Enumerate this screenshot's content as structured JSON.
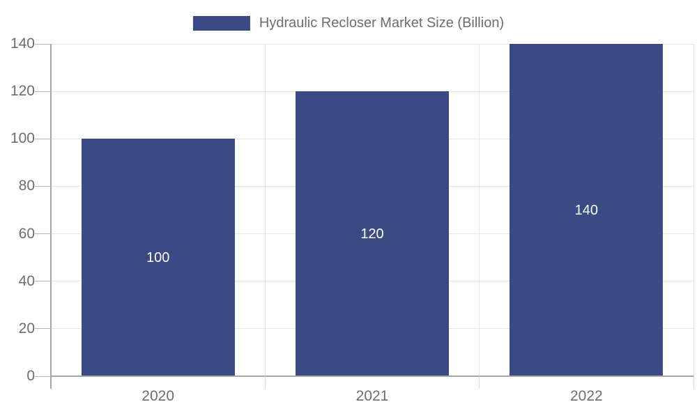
{
  "legend": {
    "label": "Hydraulic Recloser Market Size (Billion)",
    "swatch_color": "#3a4a85"
  },
  "chart_data": {
    "type": "bar",
    "title": "",
    "categories": [
      "2020",
      "2021",
      "2022"
    ],
    "series": [
      {
        "name": "Hydraulic Recloser Market Size (Billion)",
        "values": [
          100,
          120,
          140
        ],
        "color": "#3a4a85"
      }
    ],
    "value_labels": [
      "100",
      "120",
      "140"
    ],
    "xlabel": "",
    "ylabel": "",
    "ylim": [
      0,
      140
    ],
    "yticks": [
      0,
      20,
      40,
      60,
      80,
      100,
      120,
      140
    ],
    "grid": true,
    "legend_position": "top"
  },
  "colors": {
    "bar": "#3a4a85",
    "grid": "#e6e6e6",
    "axis": "#a6a6a6",
    "y_tick": "#b2b2b2",
    "x_tick": "#d9d9d9",
    "label_text": "#6d6d6d",
    "value_label_text": "#ffffff",
    "background": "#ffffff"
  }
}
